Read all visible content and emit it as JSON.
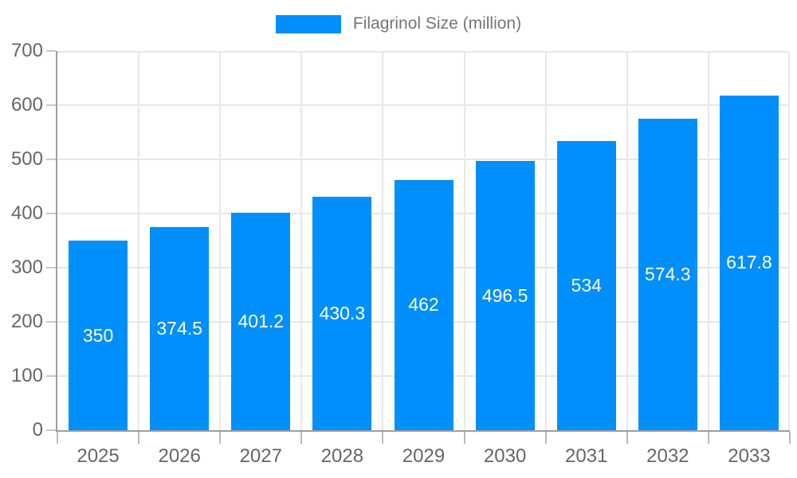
{
  "legend": {
    "label": "Filagrinol Size (million)",
    "swatch_color": "#008FFB",
    "text_color": "#757575"
  },
  "chart_data": {
    "type": "bar",
    "title": "",
    "series_name": "Filagrinol Size (million)",
    "categories": [
      "2025",
      "2026",
      "2027",
      "2028",
      "2029",
      "2030",
      "2031",
      "2032",
      "2033"
    ],
    "values": [
      350,
      374.5,
      401.2,
      430.3,
      462,
      496.5,
      534,
      574.3,
      617.8
    ],
    "value_labels": [
      "350",
      "374.5",
      "401.2",
      "430.3",
      "462",
      "496.5",
      "534",
      "574.3",
      "617.8"
    ],
    "xlabel": "",
    "ylabel": "",
    "ylim": [
      0,
      700
    ],
    "yticks": [
      0,
      100,
      200,
      300,
      400,
      500,
      600,
      700
    ],
    "grid": true,
    "legend_position": "top",
    "colors": {
      "bar": "#008FFB",
      "bar_label": "#ffffff",
      "axis_line": "#9e9e9e",
      "gridline": "#e7e7e7",
      "axis_text": "#666666"
    }
  }
}
